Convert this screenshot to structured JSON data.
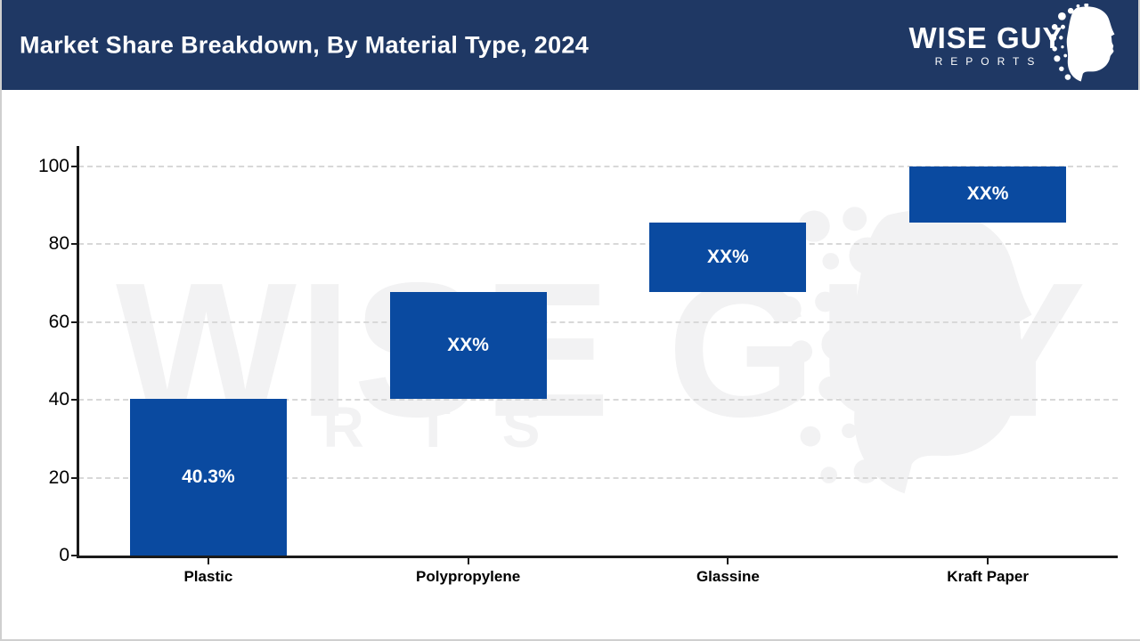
{
  "header": {
    "title": "Market Share Breakdown, By Material Type, 2024",
    "logo": {
      "line1": "WISE GUY",
      "line2": "REPORTS"
    }
  },
  "watermark": {
    "line1": "WISE GUY",
    "line2": "PORTS"
  },
  "colors": {
    "header_bg": "#1F3864",
    "bar": "#0A4AA0",
    "grid": "#d8d8d8",
    "axis": "#1a1a1a",
    "bar_label": "#ffffff",
    "watermark": "#f2f2f3",
    "frame": "#cfcfcf"
  },
  "chart_data": {
    "type": "bar",
    "subtype": "waterfall-floating-bars",
    "title": "Market Share Breakdown, By Material Type, 2024",
    "categories": [
      "Plastic",
      "Polypropylene",
      "Glassine",
      "Kraft Paper"
    ],
    "segments": [
      {
        "category": "Plastic",
        "start": 0,
        "end": 40.3,
        "label": "40.3%"
      },
      {
        "category": "Polypropylene",
        "start": 40.3,
        "end": 67.7,
        "label": "XX%"
      },
      {
        "category": "Glassine",
        "start": 67.7,
        "end": 85.5,
        "label": "XX%"
      },
      {
        "category": "Kraft Paper",
        "start": 85.5,
        "end": 100,
        "label": "XX%"
      }
    ],
    "xlabel": "",
    "ylabel": "",
    "ylim": [
      0,
      100
    ],
    "yticks": [
      0,
      20,
      40,
      60,
      80,
      100
    ],
    "grid": "horizontal-dashed",
    "legend": "none",
    "bar_color": "#0A4AA0"
  }
}
